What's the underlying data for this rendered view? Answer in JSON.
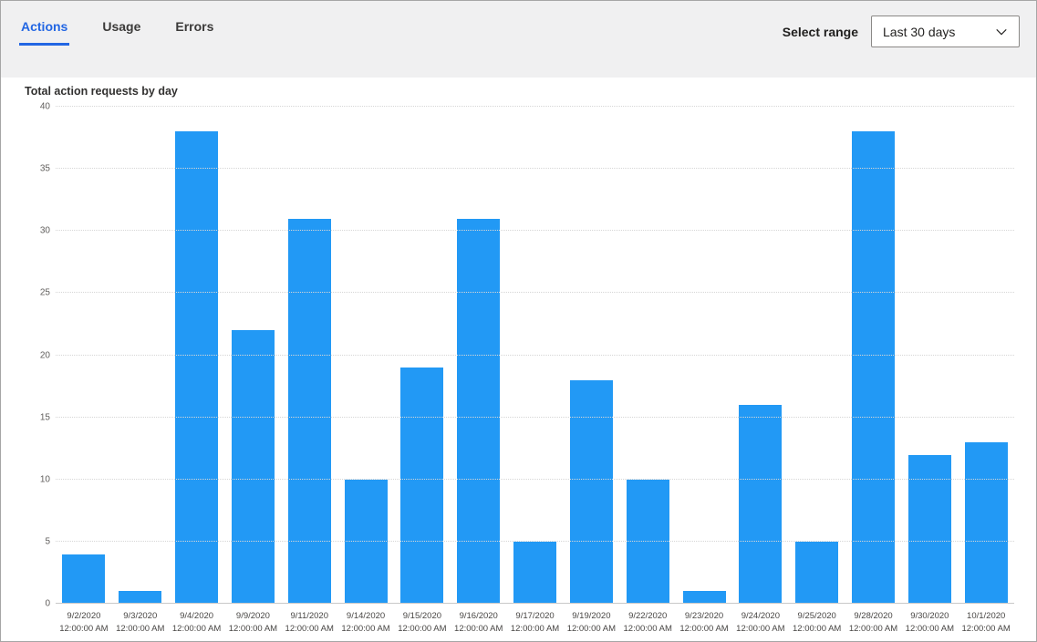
{
  "tabs": [
    {
      "label": "Actions",
      "active": true
    },
    {
      "label": "Usage",
      "active": false
    },
    {
      "label": "Errors",
      "active": false
    }
  ],
  "range": {
    "label": "Select range",
    "value": "Last 30 days"
  },
  "colors": {
    "accent": "#2266e3",
    "bar": "#2299f5"
  },
  "chart_data": {
    "type": "bar",
    "title": "Total action requests by day",
    "categories": [
      "9/2/2020",
      "9/3/2020",
      "9/4/2020",
      "9/9/2020",
      "9/11/2020",
      "9/14/2020",
      "9/15/2020",
      "9/16/2020",
      "9/17/2020",
      "9/19/2020",
      "9/22/2020",
      "9/23/2020",
      "9/24/2020",
      "9/25/2020",
      "9/28/2020",
      "9/30/2020",
      "10/1/2020"
    ],
    "category_sublabel": "12:00:00 AM",
    "values": [
      4,
      1,
      38,
      22,
      31,
      10,
      19,
      31,
      5,
      18,
      10,
      1,
      16,
      5,
      38,
      12,
      13
    ],
    "xlabel": "",
    "ylabel": "",
    "ylim": [
      0,
      40
    ],
    "ytick_interval": 5,
    "bar_color": "#2299f5",
    "grid": "horizontal-dotted",
    "legend": "none"
  }
}
